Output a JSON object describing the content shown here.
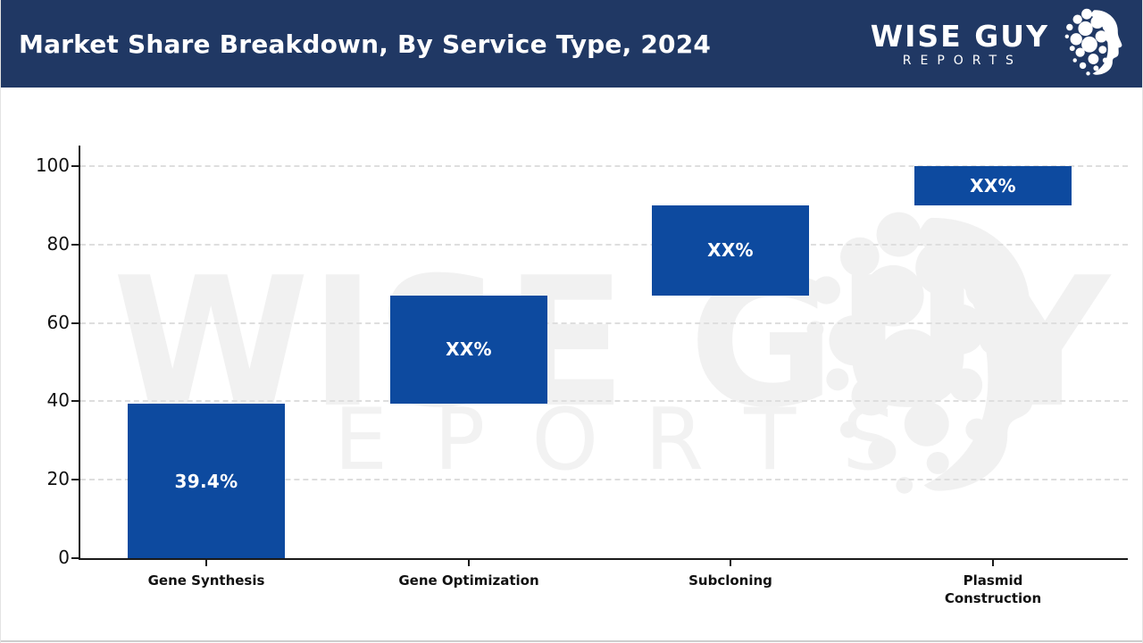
{
  "header": {
    "title": "Market Share Breakdown, By Service Type, 2024",
    "logo": {
      "line1": "WISE GUY",
      "line2": "REPORTS"
    }
  },
  "watermark": {
    "line1": "WISE GUY",
    "line2": "REPORTS"
  },
  "chart_data": {
    "type": "bar",
    "subtype": "floating-waterfall",
    "title": "Market Share Breakdown, By Service Type, 2024",
    "categories": [
      "Gene Synthesis",
      "Gene Optimization",
      "Subcloning",
      "Plasmid\nConstruction"
    ],
    "bars": [
      {
        "category": "Gene Synthesis",
        "start": 0,
        "end": 39.4,
        "label": "39.4%"
      },
      {
        "category": "Gene Optimization",
        "start": 39.4,
        "end": 67,
        "label": "XX%"
      },
      {
        "category": "Subcloning",
        "start": 67,
        "end": 90,
        "label": "XX%"
      },
      {
        "category": "Plasmid Construction",
        "start": 90,
        "end": 100,
        "label": "XX%"
      }
    ],
    "yticks": [
      0,
      20,
      40,
      60,
      80,
      100
    ],
    "ylim": [
      0,
      104
    ],
    "xlabel": "",
    "ylabel": "",
    "legend": "none",
    "grid": "horizontal-dashed",
    "bar_color": "#0d4a9f",
    "label_color": "#ffffff"
  },
  "colors": {
    "header_bg": "#203864",
    "bar": "#0d4a9f",
    "axis": "#1a1a1a",
    "gridline": "#dedede",
    "watermark": "#f1f1f1",
    "page_bg": "#ffffff"
  }
}
